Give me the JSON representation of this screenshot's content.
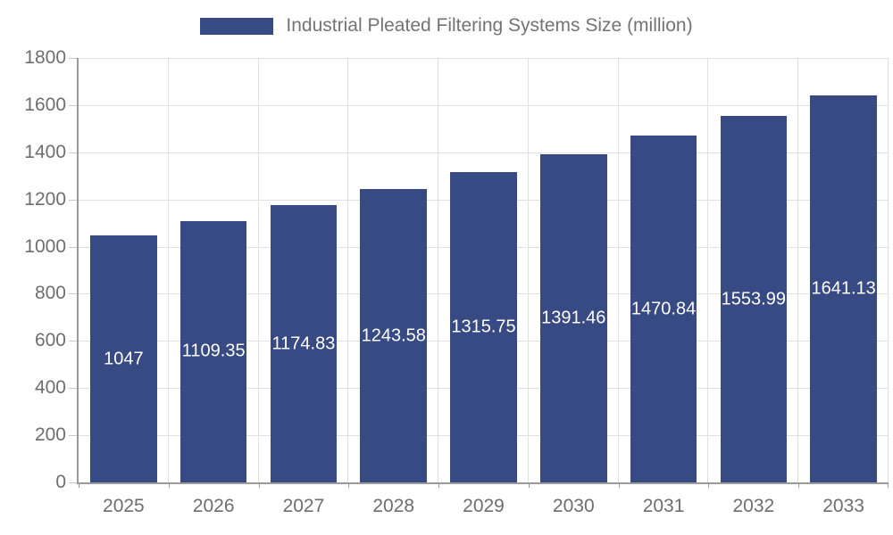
{
  "chart_data": {
    "type": "bar",
    "title": "Industrial Pleated Filtering Systems Size (million)",
    "legend_position": "top",
    "legend": [
      "Industrial Pleated Filtering Systems Size (million)"
    ],
    "categories": [
      "2025",
      "2026",
      "2027",
      "2028",
      "2029",
      "2030",
      "2031",
      "2032",
      "2033"
    ],
    "series": [
      {
        "name": "Industrial Pleated Filtering Systems Size (million)",
        "values": [
          1047,
          1109.35,
          1174.83,
          1243.58,
          1315.75,
          1391.46,
          1470.84,
          1553.99,
          1641.13
        ],
        "value_labels": [
          "1047",
          "1109.35",
          "1174.83",
          "1243.58",
          "1315.75",
          "1391.46",
          "1470.84",
          "1553.99",
          "1641.13"
        ]
      }
    ],
    "xlabel": "",
    "ylabel": "",
    "ylim": [
      0,
      1800
    ],
    "ytick_interval": 200,
    "ytick_labels": [
      "0",
      "200",
      "400",
      "600",
      "800",
      "1000",
      "1200",
      "1400",
      "1600",
      "1800"
    ],
    "grid": true,
    "colors": {
      "bar": "#374a83",
      "grid": "#e0e0e0",
      "axis": "#9a9a9a",
      "ytick_mark": "#c9c9c9",
      "tick_label": "#6e6e6e",
      "legend_text": "#737373",
      "value_label": "#ffffff"
    }
  }
}
